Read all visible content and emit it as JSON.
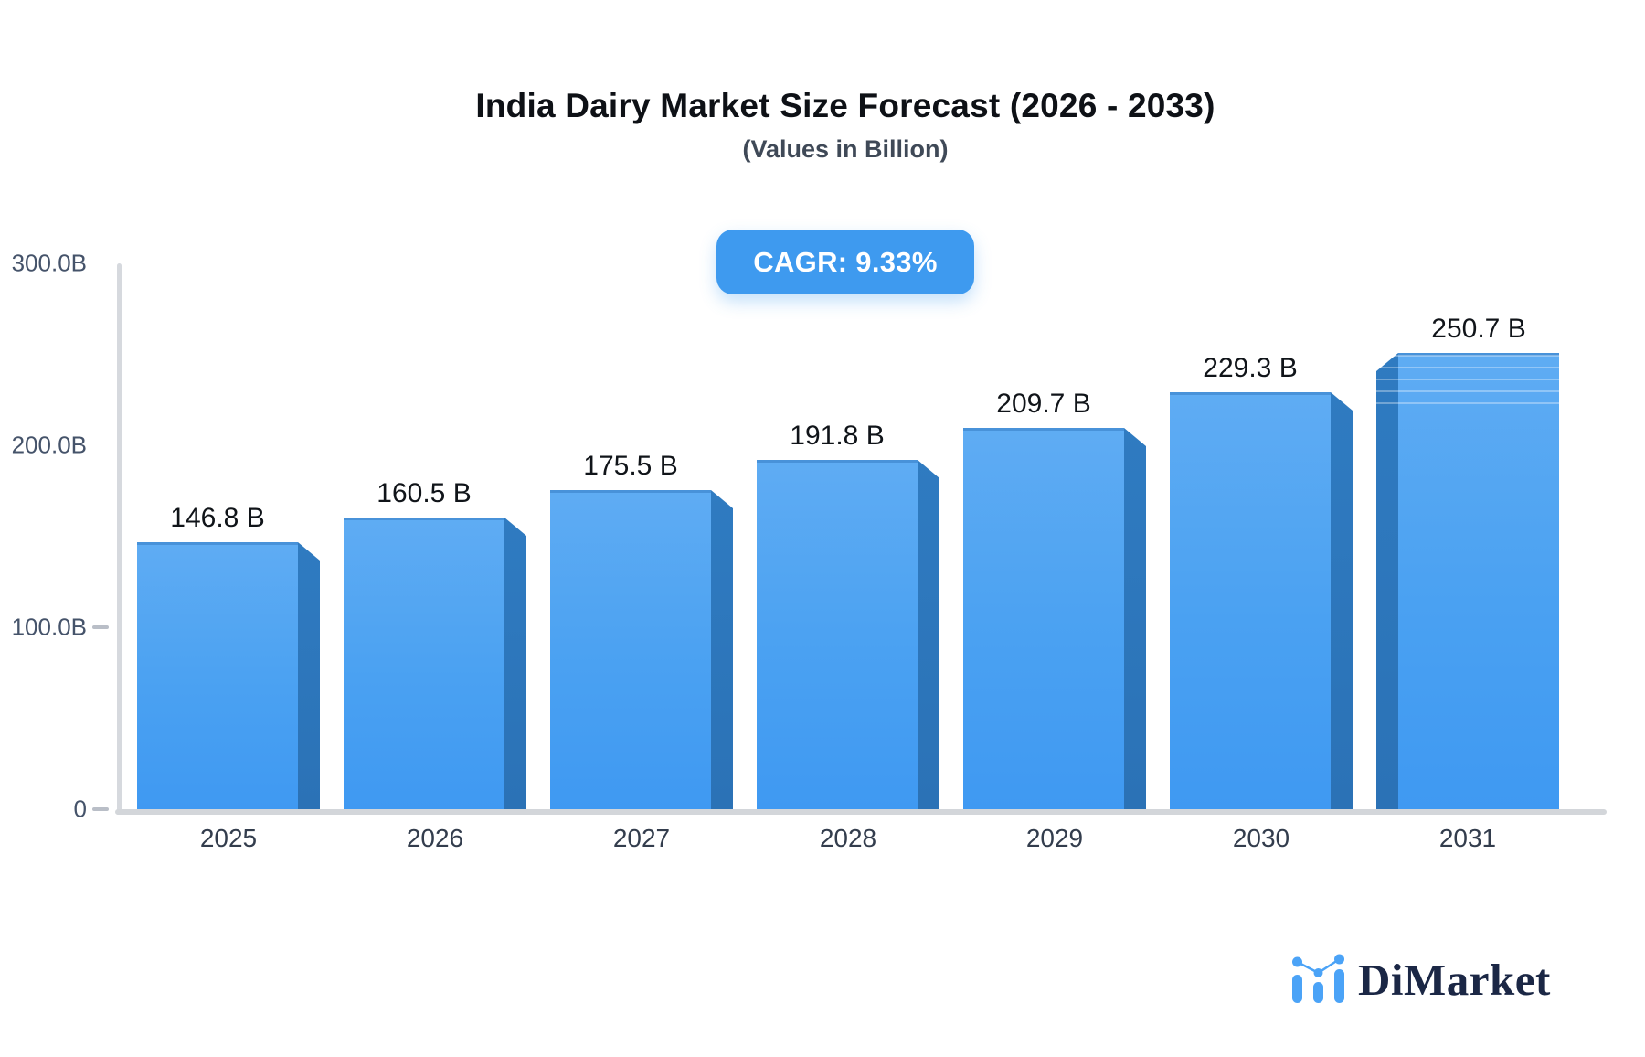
{
  "header": {
    "title": "India Dairy Market Size Forecast (2026 - 2033)",
    "subtitle": "(Values in Billion)",
    "cagr_badge": "CAGR: 9.33%"
  },
  "chart_data": {
    "type": "bar",
    "title": "India Dairy Market Size Forecast (2026 - 2033)",
    "subtitle": "(Values in Billion)",
    "unit": "Billion",
    "cagr": "9.33%",
    "categories": [
      "2025",
      "2026",
      "2027",
      "2028",
      "2029",
      "2030",
      "2031"
    ],
    "values": [
      146.8,
      160.5,
      175.5,
      191.8,
      209.7,
      229.3,
      250.7
    ],
    "value_labels": [
      "146.8 B",
      "160.5 B",
      "175.5 B",
      "191.8 B",
      "209.7 B",
      "229.3 B",
      "250.7 B"
    ],
    "ylim": [
      0,
      300
    ],
    "y_ticks": [
      {
        "label": "300.0B",
        "value": 300,
        "dash": false
      },
      {
        "label": "200.0B",
        "value": 200,
        "dash": false
      },
      {
        "label": "100.0B",
        "value": 100,
        "dash": true
      },
      {
        "label": "0",
        "value": 0,
        "dash": true
      }
    ],
    "grid": false,
    "legend": false,
    "colors": {
      "bar_face_top": "#5FACF3",
      "bar_face_bottom": "#3F99F2",
      "bar_side": "#2D76BB",
      "axis": "#D5D8DD",
      "badge": "#3E9AEF"
    }
  },
  "branding": {
    "logo_text": "DiMarket",
    "logo_icon": "mini-bar-chart-icon",
    "logo_icon_color": "#4BA3F7",
    "logo_text_color": "#1B2745"
  }
}
